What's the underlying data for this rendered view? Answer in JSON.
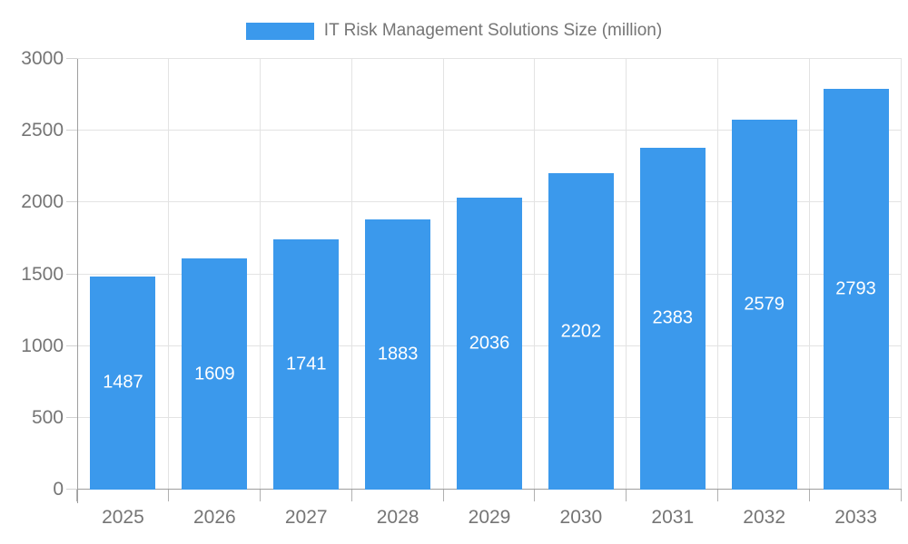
{
  "chart_data": {
    "type": "bar",
    "title": "IT Risk Management Solutions Size (million)",
    "legend": {
      "label": "IT Risk Management Solutions Size (million)",
      "position": "top"
    },
    "categories": [
      "2025",
      "2026",
      "2027",
      "2028",
      "2029",
      "2030",
      "2031",
      "2032",
      "2033"
    ],
    "values": [
      1487,
      1609,
      1741,
      1883,
      2036,
      2202,
      2383,
      2579,
      2793
    ],
    "xlabel": "",
    "ylabel": "",
    "ylim": [
      0,
      3000
    ],
    "yticks": [
      0,
      500,
      1000,
      1500,
      2000,
      2500,
      3000
    ],
    "grid": true,
    "bar_labels_inside": true,
    "colors": {
      "bar": "#3B99EC",
      "bar_label": "#ffffff",
      "axis_text": "#757575",
      "gridline": "#e3e3e3",
      "axis_line": "#9e9e9e",
      "background": "#ffffff"
    }
  }
}
